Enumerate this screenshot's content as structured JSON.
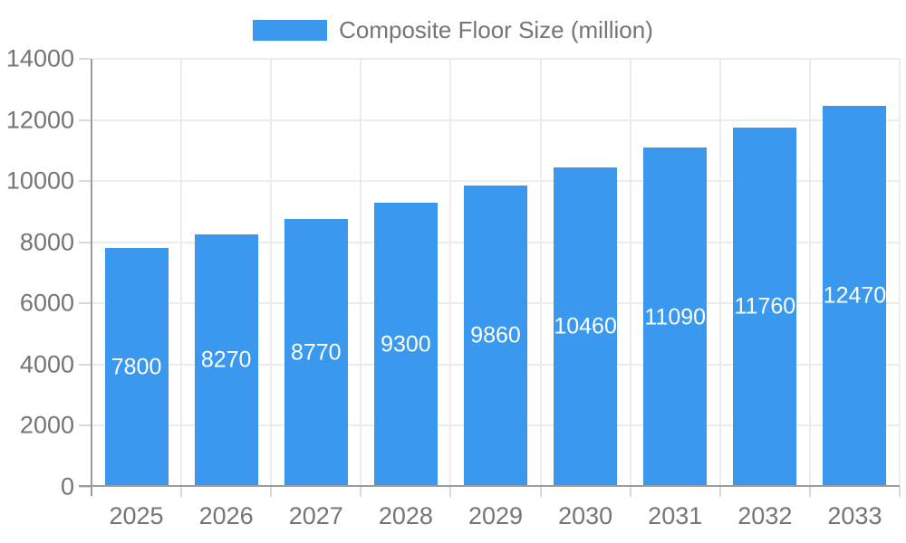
{
  "chart_data": {
    "type": "bar",
    "title": "Composite Floor Size (million)",
    "legend": [
      "Composite Floor Size (million)"
    ],
    "legend_position": "top",
    "categories": [
      "2025",
      "2026",
      "2027",
      "2028",
      "2029",
      "2030",
      "2031",
      "2032",
      "2033"
    ],
    "series": [
      {
        "name": "Composite Floor Size (million)",
        "values": [
          7800,
          8270,
          8770,
          9300,
          9860,
          10460,
          11090,
          11760,
          12470
        ],
        "value_labels": [
          "7800",
          "8270",
          "8770",
          "9300",
          "9860",
          "10460",
          "11090",
          "11760",
          "12470"
        ]
      }
    ],
    "xlabel": "",
    "ylabel": "",
    "ylim": [
      0,
      14000
    ],
    "ytick_step": 2000,
    "yticks": [
      0,
      2000,
      4000,
      6000,
      8000,
      10000,
      12000,
      14000
    ],
    "ytick_labels": [
      "0",
      "2000",
      "4000",
      "6000",
      "8000",
      "10000",
      "12000",
      "14000"
    ],
    "grid": true,
    "bar_label_position": "inside-center",
    "colors": {
      "bar": "#3a99ee",
      "bar_label": "#ffffff",
      "axis_line": "#9b9b9b",
      "grid_line": "#ececec",
      "tick_line": "#d9d9d9",
      "text": "#757575",
      "background": "#ffffff"
    }
  }
}
